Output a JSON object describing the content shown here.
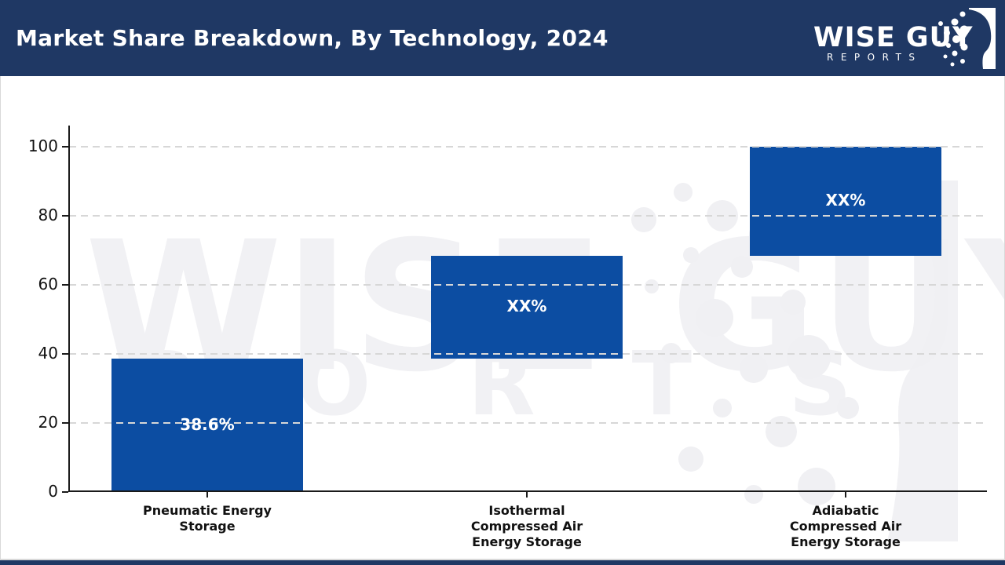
{
  "header": {
    "title": "Market Share Breakdown, By Technology, 2024",
    "logo": {
      "line1": "WISE GUY",
      "line2": "REPORTS"
    }
  },
  "watermark": {
    "line1": "WISE GUY",
    "line2": "R O R T S"
  },
  "chart_data": {
    "type": "bar",
    "subtype": "waterfall",
    "title": "Market Share Breakdown, By Technology, 2024",
    "categories": [
      "Pneumatic Energy\nStorage",
      "Isothermal\nCompressed Air\nEnergy Storage",
      "Adiabatic\nCompressed Air\nEnergy Storage"
    ],
    "segments": [
      {
        "start": 0,
        "end": 38.6,
        "label": "38.6%"
      },
      {
        "start": 38.6,
        "end": 68.5,
        "label": "XX%"
      },
      {
        "start": 68.5,
        "end": 100,
        "label": "XX%"
      }
    ],
    "yticks": [
      0,
      20,
      40,
      60,
      80,
      100
    ],
    "ylim": [
      0,
      106
    ],
    "xlabel": "",
    "ylabel": "",
    "bar_color": "#0c4da2",
    "grid": "horizontal-dashed",
    "legend": "none"
  }
}
